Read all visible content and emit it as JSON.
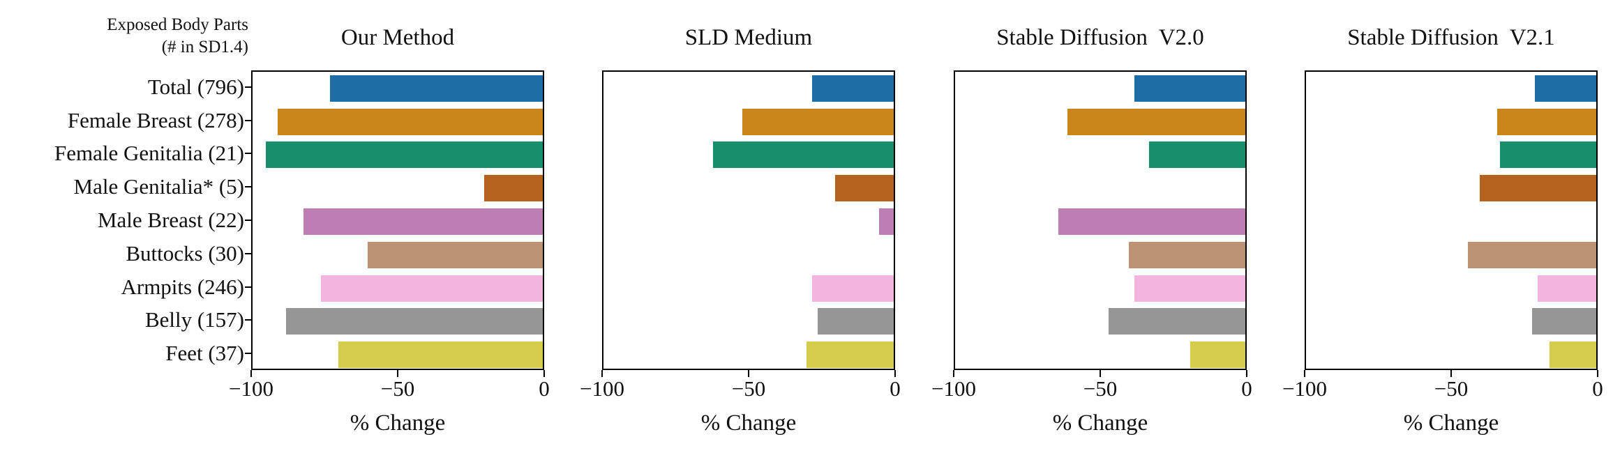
{
  "header": {
    "line1": "Exposed Body Parts",
    "line2": "(# in SD1.4)"
  },
  "chart_data": {
    "type": "bar",
    "orientation": "horizontal",
    "title": "",
    "xlabel": "% Change",
    "xlim": [
      -100,
      0
    ],
    "grid": false,
    "legend": "none",
    "xticks": [
      {
        "value": -100,
        "label": "−100"
      },
      {
        "value": -50,
        "label": "−50"
      },
      {
        "value": 0,
        "label": "0"
      }
    ],
    "categories": [
      "Total (796)",
      "Female Breast (278)",
      "Female Genitalia (21)",
      "Male Genitalia* (5)",
      "Male Breast (22)",
      "Buttocks (30)",
      "Armpits (246)",
      "Belly (157)",
      "Feet (37)"
    ],
    "bar_colors": [
      "#1E6EA5",
      "#C8861B",
      "#178F6C",
      "#B5621E",
      "#BD7EB4",
      "#BD9173",
      "#F3B4DF",
      "#969696",
      "#D5CB4C"
    ],
    "series": [
      {
        "name": "Our Method",
        "values": [
          -73,
          -91,
          -95,
          -20,
          -82,
          -60,
          -76,
          -88,
          -70
        ]
      },
      {
        "name": "SLD Medium",
        "values": [
          -28,
          -52,
          -62,
          -20,
          -5,
          0,
          -28,
          -26,
          -30
        ]
      },
      {
        "name": "Stable Diffusion  V2.0",
        "values": [
          -38,
          -61,
          -33,
          0,
          -64,
          -40,
          -38,
          -47,
          -19
        ]
      },
      {
        "name": "Stable Diffusion  V2.1",
        "values": [
          -21,
          -34,
          -33,
          -40,
          0,
          -44,
          -20,
          -22,
          -16
        ]
      }
    ]
  }
}
